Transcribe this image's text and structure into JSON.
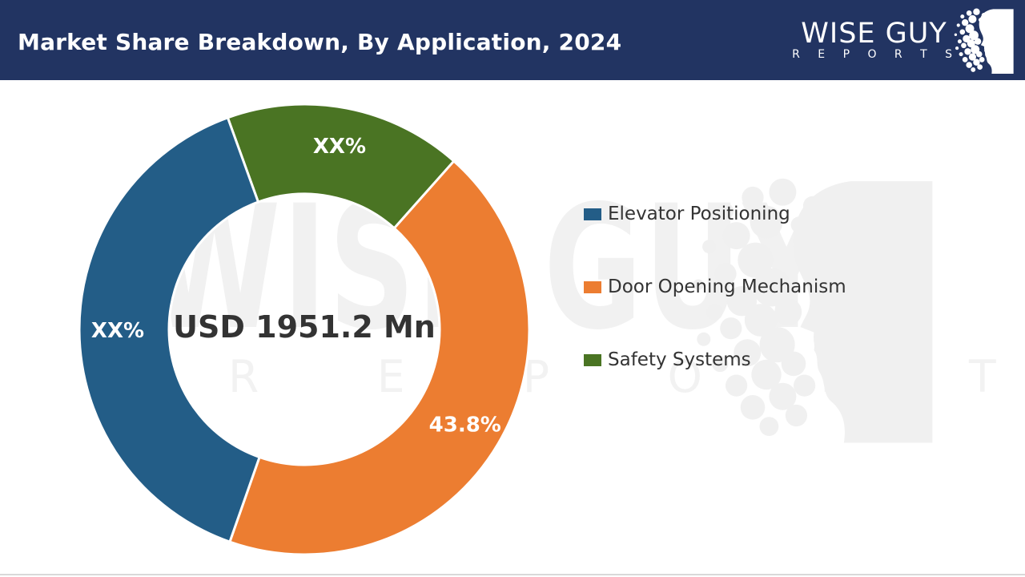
{
  "header": {
    "title": "Market Share Breakdown, By Application, 2024",
    "bg_color": "#223462",
    "logo": {
      "line1": "WISE GUY",
      "line2": "R E P O R T S"
    }
  },
  "chart_data": {
    "type": "pie",
    "subtype": "donut",
    "title": "Market Share Breakdown, By Application, 2024",
    "center_label": "USD 1951.2 Mn",
    "start_angle_deg": -19.9,
    "segments": [
      {
        "name": "Safety Systems",
        "value_pct": 17.1,
        "label": "XX%",
        "color": "#4a7423"
      },
      {
        "name": "Door Opening Mechanism",
        "value_pct": 43.8,
        "label": "43.8%",
        "color": "#ec7d31"
      },
      {
        "name": "Elevator Positioning",
        "value_pct": 39.1,
        "label": "XX%",
        "color": "#235d87"
      }
    ],
    "legend": [
      {
        "label": "Elevator Positioning",
        "color": "#235d87"
      },
      {
        "label": "Door Opening Mechanism",
        "color": "#ec7d31"
      },
      {
        "label": "Safety Systems",
        "color": "#4a7423"
      }
    ],
    "legend_position": "right",
    "label_color": "#ffffff",
    "gap_color": "#ffffff"
  },
  "watermark": {
    "line1": "WISE GUY",
    "line2": "R E P O R T S"
  }
}
